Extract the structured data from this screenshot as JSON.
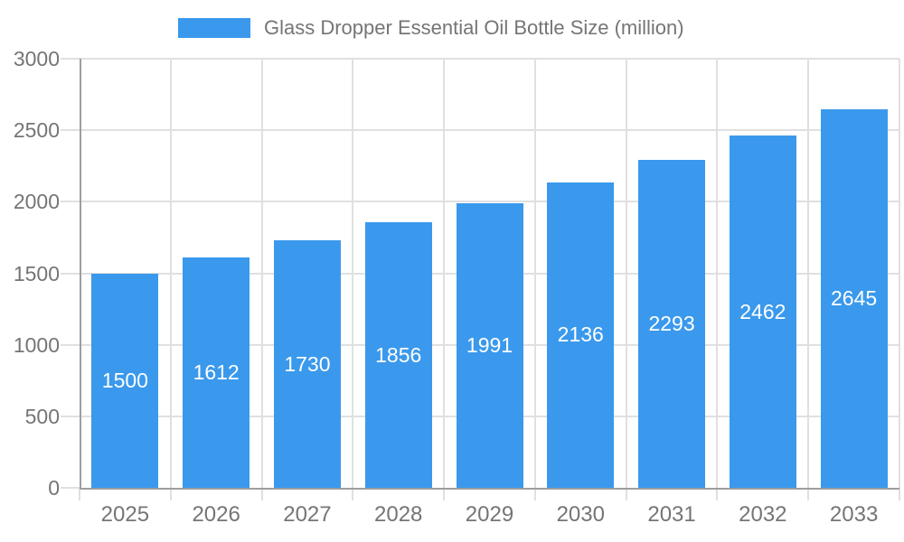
{
  "legend": {
    "label": "Glass Dropper Essential Oil Bottle Size (million)",
    "swatch_color": "#3A99EC"
  },
  "chart_data": {
    "type": "bar",
    "title": "Glass Dropper Essential Oil Bottle Size (million)",
    "series_name": "Glass Dropper Essential Oil Bottle Size (million)",
    "categories": [
      "2025",
      "2026",
      "2027",
      "2028",
      "2029",
      "2030",
      "2031",
      "2032",
      "2033"
    ],
    "values": [
      1500,
      1612,
      1730,
      1856,
      1991,
      2136,
      2293,
      2462,
      2645
    ],
    "xlabel": "",
    "ylabel": "",
    "ylim": [
      0,
      3000
    ],
    "yticks": [
      0,
      500,
      1000,
      1500,
      2000,
      2500,
      3000
    ],
    "grid": true,
    "legend_position": "top",
    "value_labels_shown": true,
    "value_label_position": "center-inside",
    "colors": {
      "bar": "#3A99EC",
      "grid_line": "#E0E0E0",
      "axis_line": "#9E9E9E",
      "axis_text": "#757575",
      "value_label": "#FFFFFF",
      "background": "#FFFFFF"
    }
  }
}
